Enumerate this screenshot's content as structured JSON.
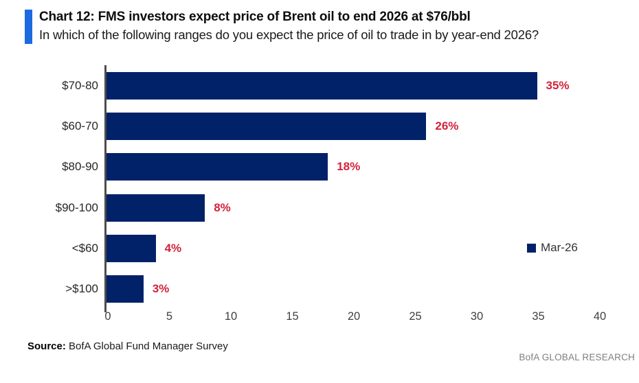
{
  "header": {
    "title": "Chart 12: FMS investors expect price of Brent oil to end 2026 at $76/bbl",
    "subtitle": "In which of the following ranges do you expect the price of oil to trade in by year-end 2026?"
  },
  "chart_data": {
    "type": "bar",
    "orientation": "horizontal",
    "title": "Chart 12: FMS investors expect price of Brent oil to end 2026 at $76/bbl",
    "subtitle": "In which of the following ranges do you expect the price of oil to trade in by year-end 2026?",
    "categories": [
      "$70-80",
      "$60-70",
      "$80-90",
      "$90-100",
      "<$60",
      ">$100"
    ],
    "series": [
      {
        "name": "Mar-26",
        "values": [
          35,
          26,
          18,
          8,
          4,
          3
        ]
      }
    ],
    "value_labels": [
      "35%",
      "26%",
      "18%",
      "8%",
      "4%",
      "3%"
    ],
    "xlim": [
      0,
      40
    ],
    "xticks": [
      0,
      5,
      10,
      15,
      20,
      25,
      30,
      35,
      40
    ],
    "grid": false,
    "legend_position": "right"
  },
  "colors": {
    "bar": "#012169",
    "value_label": "#d2223a",
    "accent_bar": "#1b6ae0",
    "axis_line": "#4d4d4d"
  },
  "footer": {
    "source_label": "Source:",
    "source_text": " BofA Global Fund Manager Survey",
    "watermark": "BofA GLOBAL RESEARCH"
  }
}
